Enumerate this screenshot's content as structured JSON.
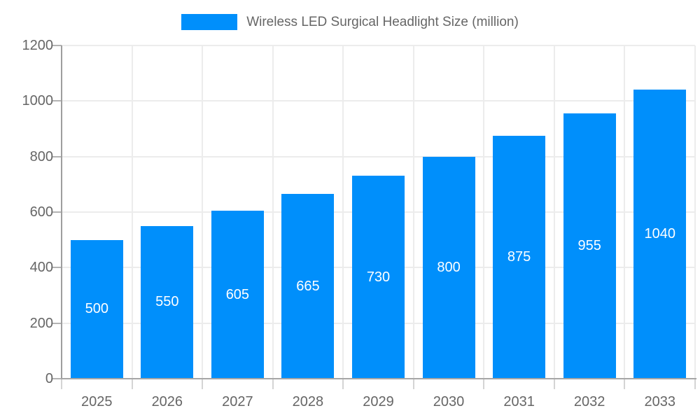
{
  "chart_data": {
    "type": "bar",
    "title": "Wireless LED Surgical Headlight Size (million)",
    "legend": {
      "position": "top",
      "entries": [
        {
          "label": "Wireless LED Surgical Headlight Size (million)",
          "color": "#008FFB"
        }
      ]
    },
    "categories": [
      "2025",
      "2026",
      "2027",
      "2028",
      "2029",
      "2030",
      "2031",
      "2032",
      "2033"
    ],
    "series": [
      {
        "name": "Wireless LED Surgical Headlight Size (million)",
        "values": [
          500,
          550,
          605,
          665,
          730,
          800,
          875,
          955,
          1040
        ]
      }
    ],
    "data_labels": [
      "500",
      "550",
      "605",
      "665",
      "730",
      "800",
      "875",
      "955",
      "1040"
    ],
    "xlabel": "",
    "ylabel": "",
    "ylim": [
      0,
      1200
    ],
    "yticks": [
      0,
      200,
      400,
      600,
      800,
      1000,
      1200
    ],
    "grid": true,
    "colors": {
      "bar": "#008FFB",
      "bar_label_text": "#ffffff",
      "axis_text": "#666666",
      "gridline": "#ececec",
      "axis_line": "#a6a6a6",
      "background": "#ffffff"
    }
  }
}
